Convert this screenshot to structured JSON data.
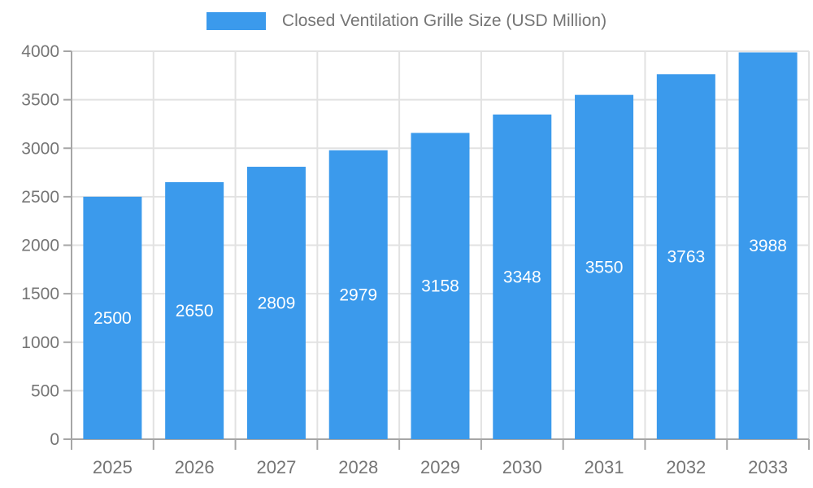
{
  "legend": {
    "label": "Closed Ventilation Grille Size (USD Million)"
  },
  "colors": {
    "bar": "#3b9aec",
    "axis": "#a6a6a6",
    "grid": "#e2e2e2",
    "tick_label": "#757575",
    "legend_text": "#757575",
    "value_label": "#ffffff",
    "background": "#ffffff"
  },
  "chart_data": {
    "type": "bar",
    "title": "Closed Ventilation Grille Size (USD Million)",
    "categories": [
      "2025",
      "2026",
      "2027",
      "2028",
      "2029",
      "2030",
      "2031",
      "2032",
      "2033"
    ],
    "values": [
      2500,
      2650,
      2809,
      2979,
      3158,
      3348,
      3550,
      3763,
      3988
    ],
    "xlabel": "",
    "ylabel": "",
    "ylim": [
      0,
      4000
    ],
    "ytick_step": 500,
    "ytick_labels": [
      "0",
      "500",
      "1000",
      "1500",
      "2000",
      "2500",
      "3000",
      "3500",
      "4000"
    ],
    "grid": true,
    "legend_position": "top",
    "value_labels_inside_bars": true
  }
}
